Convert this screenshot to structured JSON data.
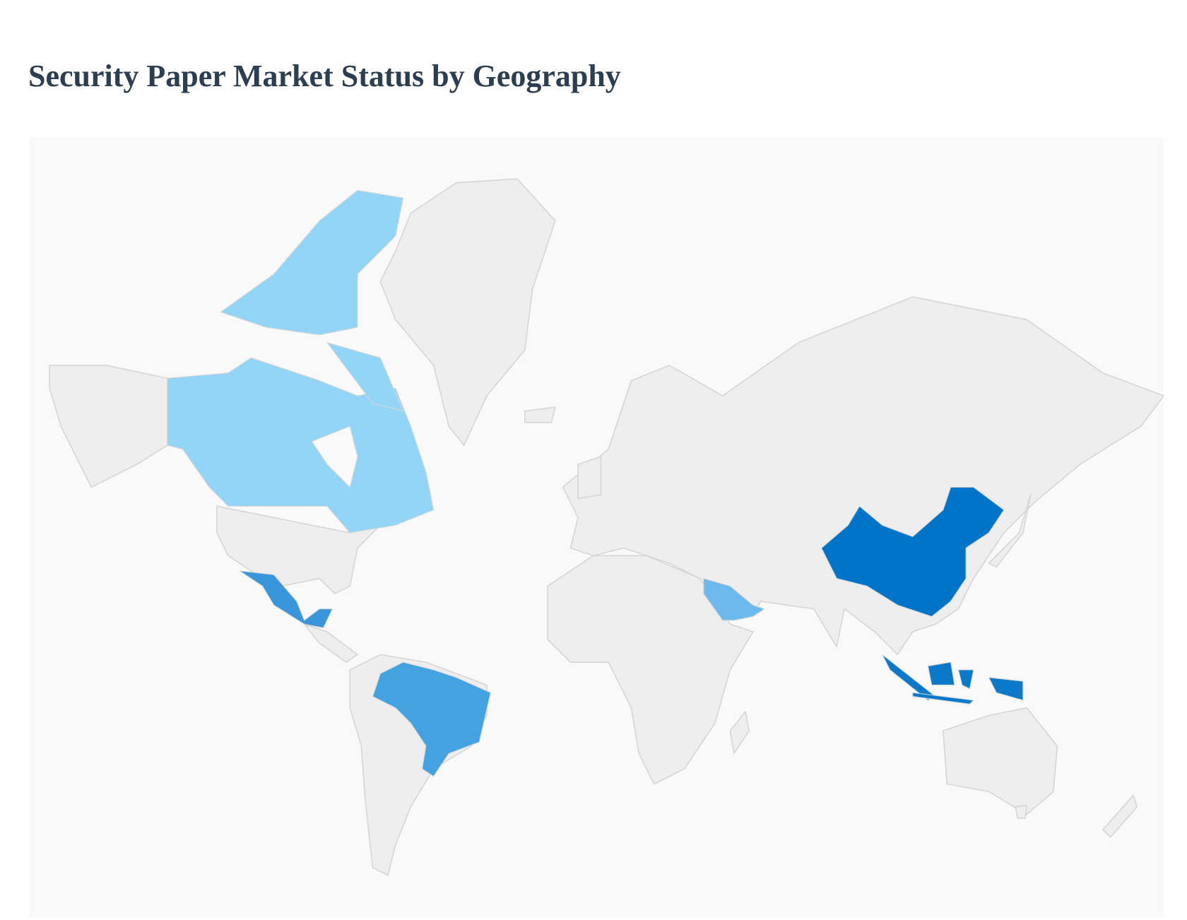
{
  "title": "Security Paper Market Status by Geography",
  "map": {
    "type": "choropleth",
    "base_color": "#eeeeee",
    "background_color": "#f9f9f9",
    "highlighted_countries": [
      {
        "country": "Canada",
        "color": "#93d5f6"
      },
      {
        "country": "Mexico",
        "color": "#3a96dc"
      },
      {
        "country": "Brazil",
        "color": "#45a2e0"
      },
      {
        "country": "Saudi Arabia",
        "color": "#6cb9ee"
      },
      {
        "country": "China",
        "color": "#0074c8"
      },
      {
        "country": "Indonesia",
        "color": "#0b78c8"
      }
    ]
  }
}
